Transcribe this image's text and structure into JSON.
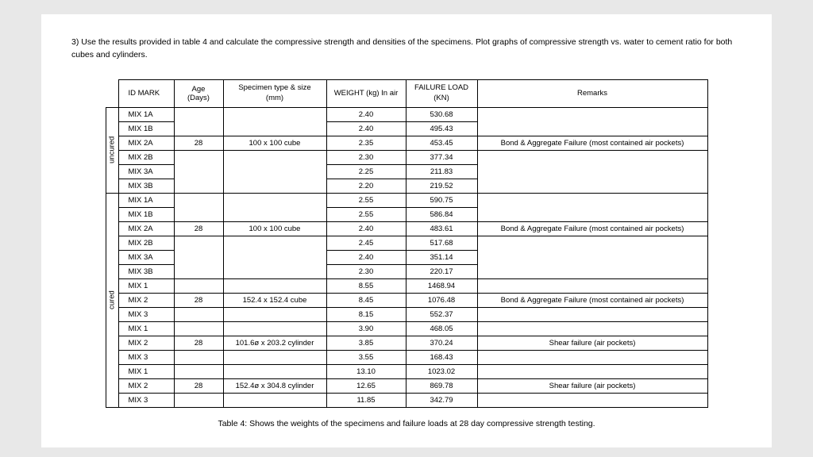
{
  "question": "3) Use the results provided in table 4 and calculate the compressive strength and densities of the specimens. Plot graphs of compressive strength vs. water to cement ratio for both cubes and cylinders.",
  "caption": "Table 4: Shows the weights of the specimens and failure loads at 28 day compressive strength testing.",
  "headers": {
    "id": "ID MARK",
    "age": "Age (Days)",
    "spec_l1": "Specimen type & size",
    "spec_l2": "(mm)",
    "weight": "WEIGHT (kg) In air",
    "load_l1": "FAILURE LOAD",
    "load_l2": "(KN)",
    "remarks": "Remarks"
  },
  "sides": {
    "uncured": "uncured",
    "cured": "cured"
  },
  "groups": [
    {
      "side": "uncured",
      "side_span": 6,
      "age": "28",
      "spec": "100 x 100 cube",
      "remarks": "Bond & Aggregate Failure (most contained air pockets)",
      "rows": [
        {
          "id": "MIX 1A",
          "w": "2.40",
          "l": "530.68"
        },
        {
          "id": "MIX 1B",
          "w": "2.40",
          "l": "495.43"
        },
        {
          "id": "MIX 2A",
          "w": "2.35",
          "l": "453.45"
        },
        {
          "id": "MIX 2B",
          "w": "2.30",
          "l": "377.34"
        },
        {
          "id": "MIX 3A",
          "w": "2.25",
          "l": "211.83"
        },
        {
          "id": "MIX 3B",
          "w": "2.20",
          "l": "219.52"
        }
      ]
    },
    {
      "side": "cured",
      "side_span": 15,
      "age": "28",
      "spec": "100 x 100 cube",
      "remarks": "Bond & Aggregate Failure (most contained air pockets)",
      "rows": [
        {
          "id": "MIX 1A",
          "w": "2.55",
          "l": "590.75"
        },
        {
          "id": "MIX 1B",
          "w": "2.55",
          "l": "586.84"
        },
        {
          "id": "MIX 2A",
          "w": "2.40",
          "l": "483.61"
        },
        {
          "id": "MIX 2B",
          "w": "2.45",
          "l": "517.68"
        },
        {
          "id": "MIX 3A",
          "w": "2.40",
          "l": "351.14"
        },
        {
          "id": "MIX 3B",
          "w": "2.30",
          "l": "220.17"
        }
      ]
    },
    {
      "age": "28",
      "spec": "152.4 x 152.4 cube",
      "remarks": "Bond & Aggregate Failure (most contained air pockets)",
      "rows": [
        {
          "id": "MIX 1",
          "w": "8.55",
          "l": "1468.94"
        },
        {
          "id": "MIX 2",
          "w": "8.45",
          "l": "1076.48"
        },
        {
          "id": "MIX 3",
          "w": "8.15",
          "l": "552.37"
        }
      ]
    },
    {
      "age": "28",
      "spec": "101.6ø x 203.2 cylinder",
      "remarks": "Shear failure (air pockets)",
      "rows": [
        {
          "id": "MIX 1",
          "w": "3.90",
          "l": "468.05"
        },
        {
          "id": "MIX 2",
          "w": "3.85",
          "l": "370.24"
        },
        {
          "id": "MIX 3",
          "w": "3.55",
          "l": "168.43"
        }
      ]
    },
    {
      "age": "28",
      "spec": "152.4ø x 304.8 cylinder",
      "remarks": "Shear failure (air pockets)",
      "rows": [
        {
          "id": "MIX 1",
          "w": "13.10",
          "l": "1023.02"
        },
        {
          "id": "MIX 2",
          "w": "12.65",
          "l": "869.78"
        },
        {
          "id": "MIX 3",
          "w": "11.85",
          "l": "342.79"
        }
      ]
    }
  ]
}
